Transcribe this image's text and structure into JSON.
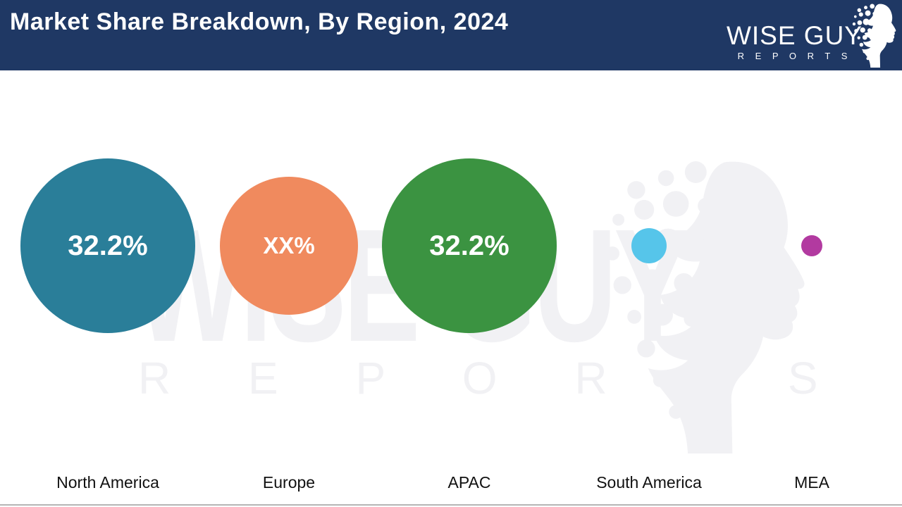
{
  "header": {
    "title": "Market Share Breakdown, By Region, 2024",
    "bg_color": "#1f3864",
    "logo": {
      "line1": "WISE GUY",
      "line2": "R E P O R T S"
    }
  },
  "watermark": {
    "line1": "WISE GUY",
    "line2": "R E P O R T S"
  },
  "chart_data": {
    "type": "bubble",
    "title": "Market Share Breakdown, By Region, 2024",
    "categories": [
      "North America",
      "Europe",
      "APAC",
      "South America",
      "MEA"
    ],
    "series": [
      {
        "name": "North America",
        "label": "32.2%",
        "value": 32.2,
        "color": "#2a7e99",
        "radius": 124
      },
      {
        "name": "Europe",
        "label": "XX%",
        "value": null,
        "color": "#f08a5e",
        "radius": 98
      },
      {
        "name": "APAC",
        "label": "32.2%",
        "value": 32.2,
        "color": "#3b9341",
        "radius": 124
      },
      {
        "name": "South America",
        "label": "",
        "value": null,
        "color": "#56c5ea",
        "radius": 25
      },
      {
        "name": "MEA",
        "label": "",
        "value": null,
        "color": "#b23aa0",
        "radius": 15
      }
    ],
    "legend": "none",
    "grid": false,
    "label_color": "#ffffff"
  }
}
